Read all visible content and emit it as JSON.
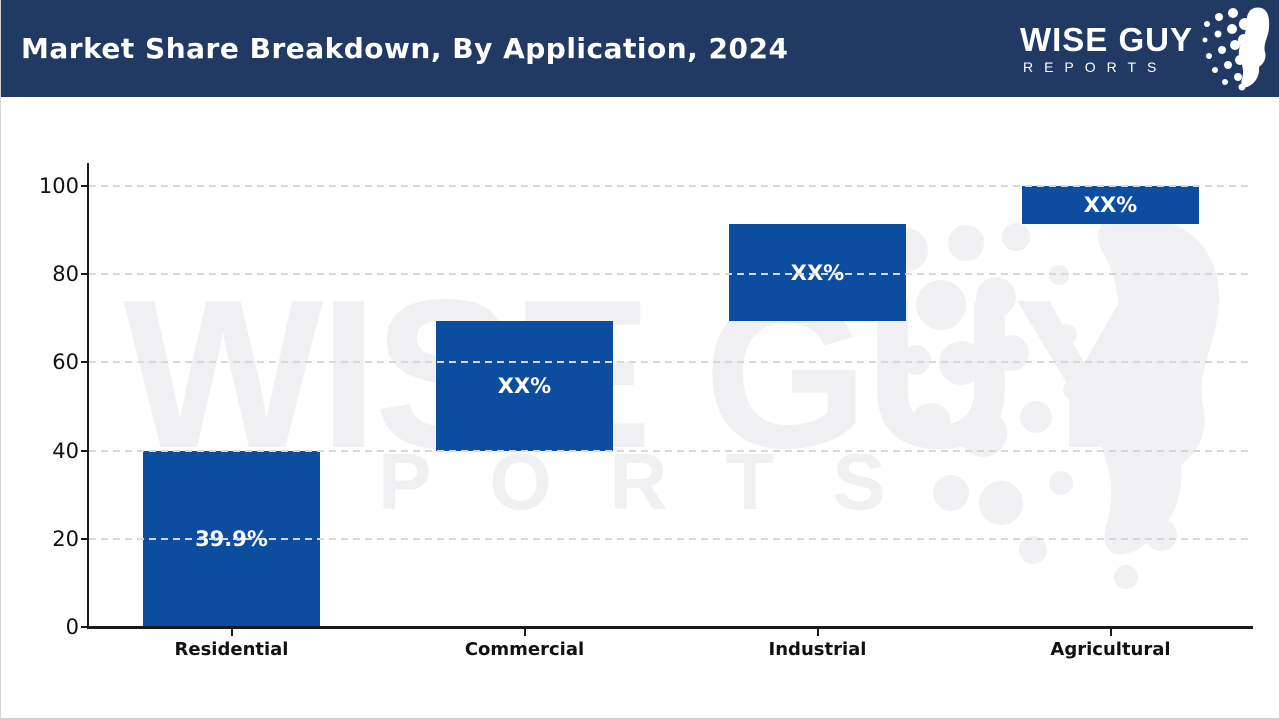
{
  "header": {
    "title": "Market Share Breakdown, By Application, 2024",
    "bg_color": "#213a64",
    "logo": {
      "line1": "WISE GUY",
      "line2": "REPORTS"
    }
  },
  "watermark": {
    "line1": "WISE GUY",
    "line2": "REPORTS"
  },
  "chart_data": {
    "type": "bar",
    "subtype": "waterfall",
    "title": "Market Share Breakdown, By Application, 2024",
    "categories": [
      "Residential",
      "Commercial",
      "Industrial",
      "Agricultural"
    ],
    "segments": [
      {
        "category": "Residential",
        "start": 0,
        "end": 39.9,
        "label": "39.9%"
      },
      {
        "category": "Commercial",
        "start": 39.9,
        "end": 69.3,
        "label": "XX%"
      },
      {
        "category": "Industrial",
        "start": 69.3,
        "end": 91.3,
        "label": "XX%"
      },
      {
        "category": "Agricultural",
        "start": 91.3,
        "end": 100,
        "label": "XX%"
      }
    ],
    "xlabel": "",
    "ylabel": "",
    "ylim": [
      0,
      100
    ],
    "yticks": [
      0,
      20,
      40,
      60,
      80,
      100
    ],
    "grid": "horizontal-dashed",
    "legend": "none",
    "bar_color": "#0d4da0",
    "bar_label_color": "#ffffff",
    "grid_color": "#d8d8d8",
    "axis_color": "#1a1a1a",
    "watermark_color": "#f0f0f2"
  }
}
